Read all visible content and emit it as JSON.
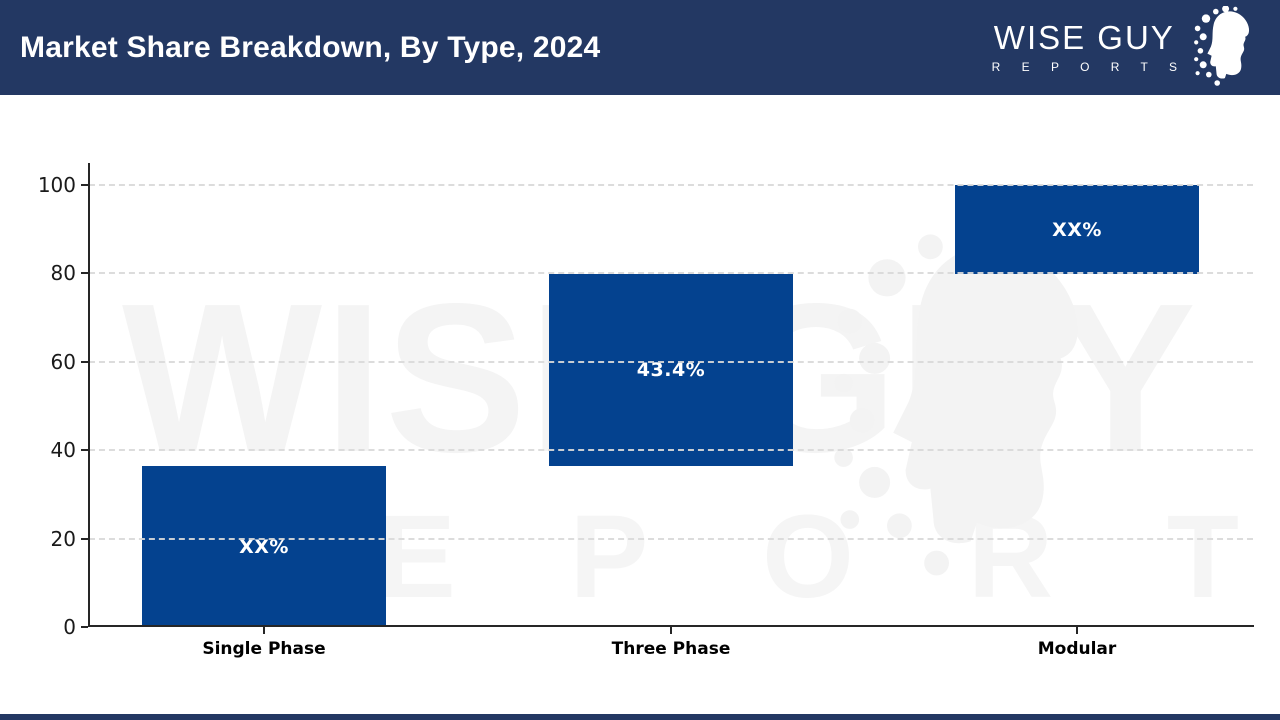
{
  "header": {
    "title": "Market Share Breakdown, By Type, 2024",
    "logo": {
      "line1": "WISE GUY",
      "line2": "R E P O R T S"
    }
  },
  "watermark": {
    "line1": "WISE GUY",
    "line2": "REPORTS"
  },
  "chart_data": {
    "type": "bar",
    "subtype": "waterfall",
    "title": "Market Share Breakdown, By Type, 2024",
    "categories": [
      "Single Phase",
      "Three Phase",
      "Modular"
    ],
    "bars": [
      {
        "category": "Single Phase",
        "start": 0,
        "end": 36.4,
        "value_label": "XX%"
      },
      {
        "category": "Three Phase",
        "start": 36.4,
        "end": 79.8,
        "value_label": "43.4%"
      },
      {
        "category": "Modular",
        "start": 79.8,
        "end": 100,
        "value_label": "XX%"
      }
    ],
    "xlabel": "",
    "ylabel": "",
    "ylim": [
      0,
      100
    ],
    "yticks": [
      "0",
      "20",
      "40",
      "60",
      "80",
      "100"
    ],
    "grid": "horizontal-dashed",
    "legend": "none",
    "bar_color": "#04428f",
    "gridline_color": "#d9d9d9",
    "axis_color": "#262626"
  },
  "colors": {
    "header_bg": "#233863",
    "footer_bg": "#233863",
    "bar": "#04428f",
    "watermark": "#f4f4f4"
  }
}
